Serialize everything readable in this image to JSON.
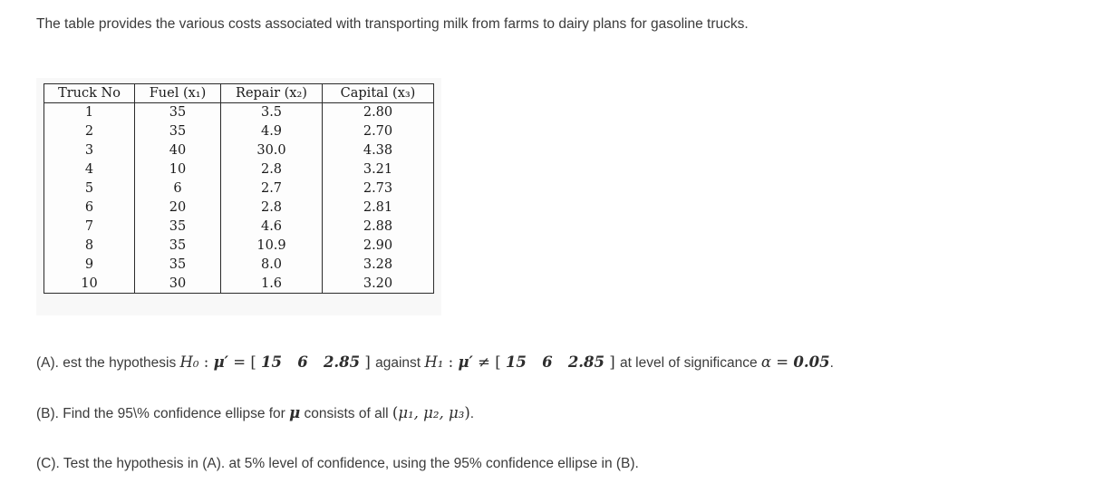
{
  "intro": "The table provides the various costs associated with transporting milk from farms to dairy plans for gasoline trucks.",
  "table": {
    "headers": [
      "Truck No",
      "Fuel (x₁)",
      "Repair (x₂)",
      "Capital (x₃)"
    ],
    "rows": [
      [
        "1",
        "35",
        "3.5",
        "2.80"
      ],
      [
        "2",
        "35",
        "4.9",
        "2.70"
      ],
      [
        "3",
        "40",
        "30.0",
        "4.38"
      ],
      [
        "4",
        "10",
        "2.8",
        "3.21"
      ],
      [
        "5",
        "6",
        "2.7",
        "2.73"
      ],
      [
        "6",
        "20",
        "2.8",
        "2.81"
      ],
      [
        "7",
        "35",
        "4.6",
        "2.88"
      ],
      [
        "8",
        "35",
        "10.9",
        "2.90"
      ],
      [
        "9",
        "35",
        "8.0",
        "3.28"
      ],
      [
        "10",
        "30",
        "1.6",
        "3.20"
      ]
    ]
  },
  "questions": {
    "a": [
      {
        "style": "plain",
        "text": "(A). est the hypothesis "
      },
      {
        "style": "math",
        "text": "H₀"
      },
      {
        "style": "mathup",
        "text": " : "
      },
      {
        "style": "mathbold",
        "text": "μ′"
      },
      {
        "style": "mathup",
        "text": " = [ "
      },
      {
        "style": "mathbold",
        "text": "15   6   2.85"
      },
      {
        "style": "mathup",
        "text": " ] "
      },
      {
        "style": "plain",
        "text": "against "
      },
      {
        "style": "math",
        "text": "H₁"
      },
      {
        "style": "mathup",
        "text": " : "
      },
      {
        "style": "mathbold",
        "text": "μ′"
      },
      {
        "style": "mathup",
        "text": " ≠ [ "
      },
      {
        "style": "mathbold",
        "text": "15   6   2.85"
      },
      {
        "style": "mathup",
        "text": " ] "
      },
      {
        "style": "plain",
        "text": "at level of significance "
      },
      {
        "style": "math",
        "text": "α"
      },
      {
        "style": "mathup",
        "text": " = "
      },
      {
        "style": "mathbold",
        "text": "0.05"
      },
      {
        "style": "plain",
        "text": "."
      }
    ],
    "b": [
      {
        "style": "plain",
        "text": "(B). Find the 95\\% confidence ellipse for "
      },
      {
        "style": "mathbold",
        "text": "μ"
      },
      {
        "style": "plain",
        "text": " consists of all "
      },
      {
        "style": "mathup",
        "text": "("
      },
      {
        "style": "math",
        "text": "μ₁, μ₂, μ₃"
      },
      {
        "style": "mathup",
        "text": ")"
      },
      {
        "style": "plain",
        "text": "."
      }
    ],
    "c": [
      {
        "style": "plain",
        "text": "(C). Test the hypothesis in (A). at 5% level of confidence, using the 95% confidence ellipse in (B)."
      }
    ]
  }
}
